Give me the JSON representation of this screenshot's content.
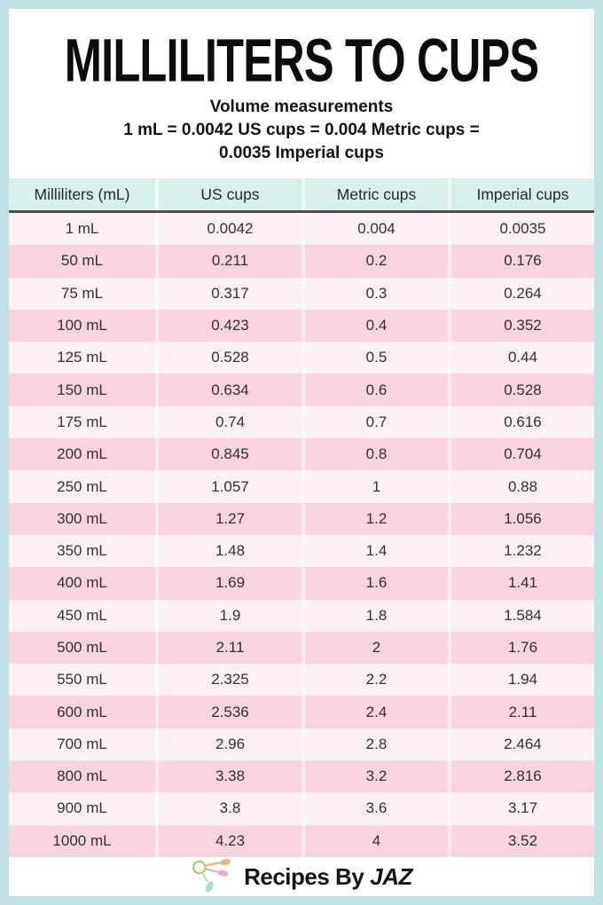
{
  "title": "MILLILITERS TO CUPS",
  "subtitle": {
    "line1": "Volume measurements",
    "line2": "1 mL = 0.0042 US cups = 0.004 Metric cups =",
    "line3": "0.0035 Imperial cups"
  },
  "chart_data": {
    "type": "table",
    "title": "Milliliters to Cups",
    "columns": [
      "Milliliters (mL)",
      "US cups",
      "Metric cups",
      "Imperial cups"
    ],
    "rows": [
      [
        "1 mL",
        "0.0042",
        "0.004",
        "0.0035"
      ],
      [
        "50 mL",
        "0.211",
        "0.2",
        "0.176"
      ],
      [
        "75 mL",
        "0.317",
        "0.3",
        "0.264"
      ],
      [
        "100 mL",
        "0.423",
        "0.4",
        "0.352"
      ],
      [
        "125 mL",
        "0.528",
        "0.5",
        "0.44"
      ],
      [
        "150 mL",
        "0.634",
        "0.6",
        "0.528"
      ],
      [
        "175 mL",
        "0.74",
        "0.7",
        "0.616"
      ],
      [
        "200 mL",
        "0.845",
        "0.8",
        "0.704"
      ],
      [
        "250 mL",
        "1.057",
        "1",
        "0.88"
      ],
      [
        "300 mL",
        "1.27",
        "1.2",
        "1.056"
      ],
      [
        "350 mL",
        "1.48",
        "1.4",
        "1.232"
      ],
      [
        "400 mL",
        "1.69",
        "1.6",
        "1.41"
      ],
      [
        "450 mL",
        "1.9",
        "1.8",
        "1.584"
      ],
      [
        "500 mL",
        "2.11",
        "2",
        "1.76"
      ],
      [
        "550 mL",
        "2.325",
        "2.2",
        "1.94"
      ],
      [
        "600 mL",
        "2.536",
        "2.4",
        "2.11"
      ],
      [
        "700 mL",
        "2.96",
        "2.8",
        "2.464"
      ],
      [
        "800 mL",
        "3.38",
        "3.2",
        "2.816"
      ],
      [
        "900 mL",
        "3.8",
        "3.6",
        "3.17"
      ],
      [
        "1000 mL",
        "4.23",
        "4",
        "3.52"
      ]
    ],
    "layout_hints": {
      "striped": true,
      "stripe_colors": [
        "#fdf1f4",
        "#f9d3de"
      ],
      "header_bg": "#d9efed"
    }
  },
  "footer": {
    "brand_prefix": "Recipes By",
    "brand_name": "JAZ",
    "logo": "measuring-spoons-icon"
  },
  "colors": {
    "border": "#c2e1e6",
    "border_accent": "#a5d4d1",
    "header_bg": "#d9efed",
    "row_pink": "#f9d3de",
    "row_light": "#fdf1f4",
    "header_rule": "#4d4d4d"
  }
}
